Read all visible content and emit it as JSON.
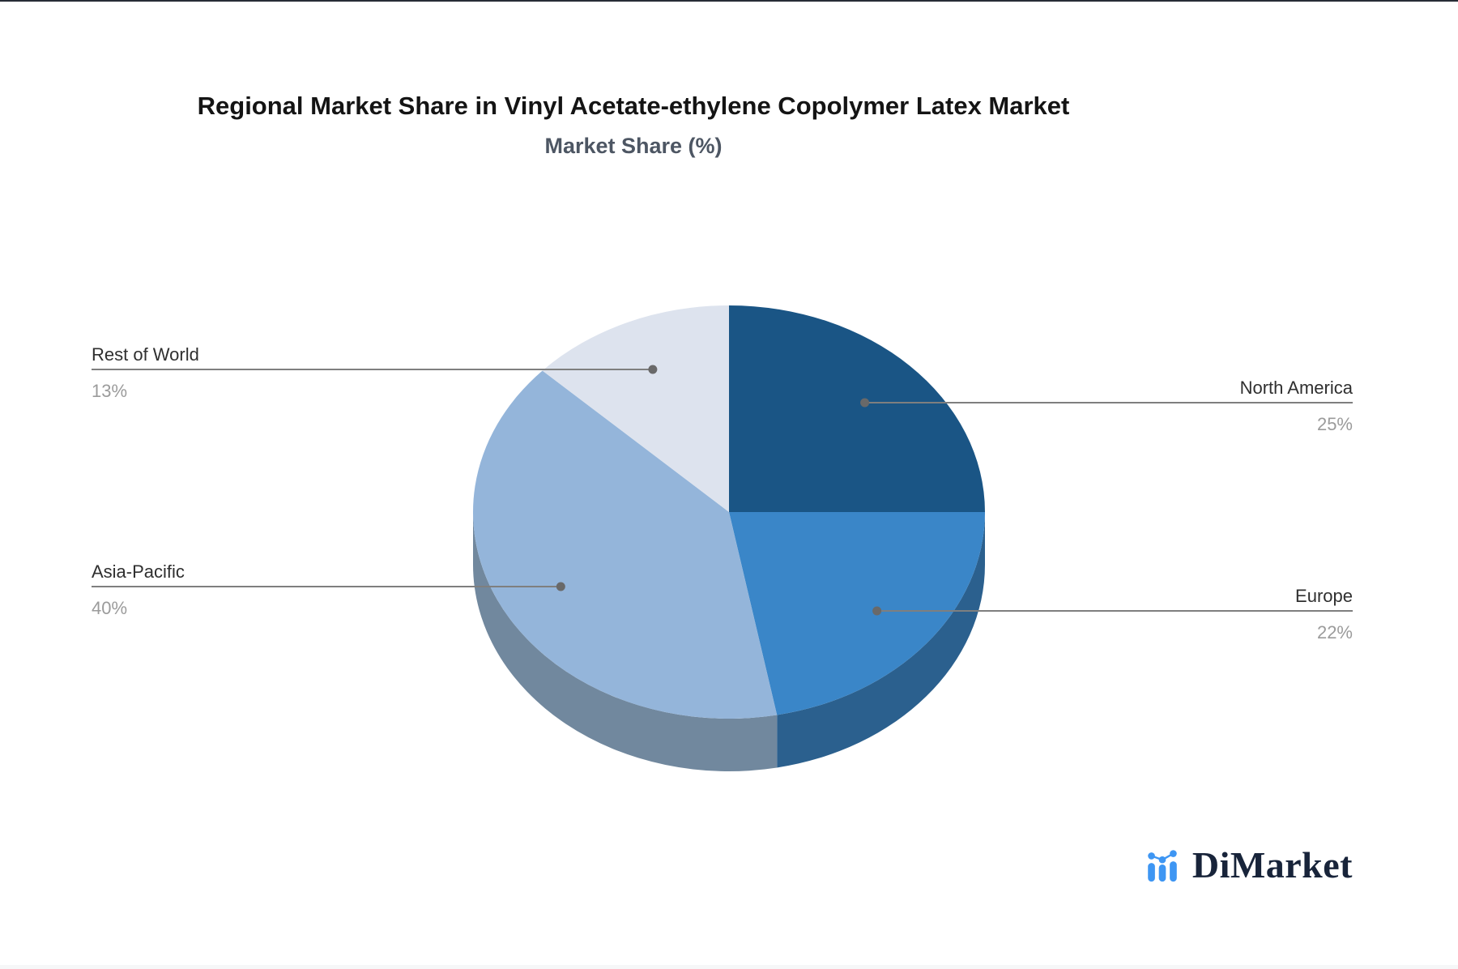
{
  "page": {
    "background": "#ffffff",
    "top_edge_color": "#272c36",
    "bottom_edge_color": "#f6f7f8"
  },
  "header": {
    "title": "Regional Market Share in Vinyl Acetate-ethylene Copolymer Latex Market",
    "subtitle": "Market Share (%)",
    "title_color": "#141414",
    "subtitle_color": "#4d5663"
  },
  "chart_data": {
    "type": "pie",
    "title": "Regional Market Share in Vinyl Acetate-ethylene Copolymer Latex Market",
    "subtitle": "Market Share (%)",
    "unit": "%",
    "style": "3d-pie",
    "direction": "clockwise",
    "start_angle_deg": 0,
    "categories": [
      "North America",
      "Europe",
      "Asia-Pacific",
      "Rest of World"
    ],
    "values": [
      25,
      22,
      40,
      13
    ],
    "slices": [
      {
        "label": "North America",
        "value": 25,
        "display": "25%",
        "color": "#1a5585",
        "depth_color": "#1d4f7c",
        "label_side": "right"
      },
      {
        "label": "Europe",
        "value": 22,
        "display": "22%",
        "color": "#3a86c8",
        "depth_color": "#2b608e",
        "label_side": "right"
      },
      {
        "label": "Asia-Pacific",
        "value": 40,
        "display": "40%",
        "color": "#94b5da",
        "depth_color": "#71889e",
        "label_side": "left"
      },
      {
        "label": "Rest of World",
        "value": 13,
        "display": "13%",
        "color": "#dde3ee",
        "depth_color": "#aab6c6",
        "label_side": "left"
      }
    ],
    "legend_position": "none",
    "grid": false,
    "label_name_color": "#2f2f2f",
    "label_value_color": "#9b9b9b",
    "leader_line_color": "#7f7f7f",
    "leader_dot_color": "#696969"
  },
  "branding": {
    "logo_text": "DiMarket",
    "logo_text_color": "#18243a",
    "logo_icon": "bar-line-chart-icon",
    "logo_icon_color": "#3e96f3"
  }
}
